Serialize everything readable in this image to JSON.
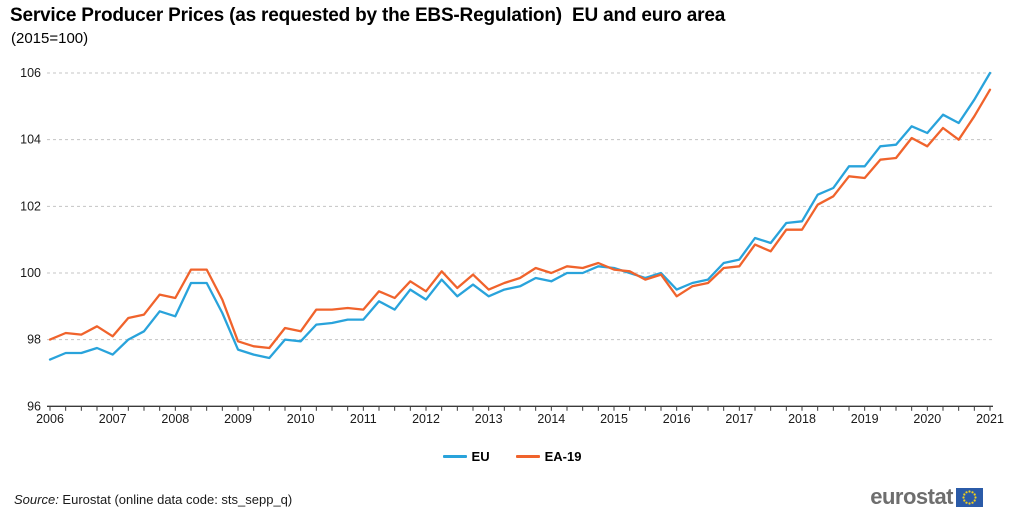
{
  "header": {
    "title": "Service Producer Prices (as requested by the EBS-Regulation)  EU and euro area",
    "subtitle": "(2015=100)"
  },
  "legend": {
    "items": [
      {
        "label": "EU",
        "color": "#29A3DB"
      },
      {
        "label": "EA-19",
        "color": "#F0632C"
      }
    ]
  },
  "footer": {
    "source_label": "Source:",
    "source_rest": " Eurostat (online data code: sts_sepp_q)"
  },
  "logo": {
    "text": "eurostat",
    "flag_blue": "#2B5BA8",
    "star_yellow": "#F7D117"
  },
  "chart_data": {
    "type": "line",
    "title": "Service Producer Prices (as requested by the EBS-Regulation) EU and euro area",
    "subtitle": "(2015=100)",
    "x_frequency": "quarterly",
    "x_start": "2006-Q1",
    "x_end": "2021-Q1",
    "xlabel": "",
    "ylabel": "",
    "ylim": [
      96,
      106
    ],
    "yticks": [
      96,
      98,
      100,
      102,
      104,
      106
    ],
    "xticklabels": [
      "2006",
      "2007",
      "2008",
      "2009",
      "2010",
      "2011",
      "2012",
      "2013",
      "2014",
      "2015",
      "2016",
      "2017",
      "2018",
      "2019",
      "2020",
      "2021"
    ],
    "grid": "horizontal-dashed",
    "legend_position": "bottom-center",
    "colors": {
      "grid": "#C4C4C4",
      "axis": "#3a3a3a",
      "tick_text": "#1a1a1a"
    },
    "series": [
      {
        "name": "EU",
        "color": "#29A3DB",
        "values": [
          97.4,
          97.6,
          97.6,
          97.75,
          97.55,
          98.0,
          98.25,
          98.85,
          98.7,
          99.7,
          99.7,
          98.8,
          97.7,
          97.55,
          97.45,
          98.0,
          97.95,
          98.45,
          98.5,
          98.6,
          98.6,
          99.15,
          98.9,
          99.5,
          99.2,
          99.8,
          99.3,
          99.65,
          99.3,
          99.5,
          99.6,
          99.85,
          99.75,
          100.0,
          100.0,
          100.2,
          100.15,
          100.0,
          99.85,
          100.0,
          99.5,
          99.7,
          99.8,
          100.3,
          100.4,
          101.05,
          100.9,
          101.5,
          101.55,
          102.35,
          102.55,
          103.2,
          103.2,
          103.8,
          103.85,
          104.4,
          104.2,
          104.75,
          104.5,
          105.2,
          106.0
        ]
      },
      {
        "name": "EA-19",
        "color": "#F0632C",
        "values": [
          98.0,
          98.2,
          98.15,
          98.4,
          98.1,
          98.65,
          98.75,
          99.35,
          99.25,
          100.1,
          100.1,
          99.2,
          97.95,
          97.8,
          97.75,
          98.35,
          98.25,
          98.9,
          98.9,
          98.95,
          98.9,
          99.45,
          99.25,
          99.75,
          99.45,
          100.05,
          99.55,
          99.95,
          99.5,
          99.7,
          99.85,
          100.15,
          100.0,
          100.2,
          100.15,
          100.3,
          100.1,
          100.05,
          99.8,
          99.95,
          99.3,
          99.6,
          99.7,
          100.15,
          100.2,
          100.85,
          100.65,
          101.3,
          101.3,
          102.05,
          102.3,
          102.9,
          102.85,
          103.4,
          103.45,
          104.05,
          103.8,
          104.35,
          104.0,
          104.7,
          105.5
        ]
      }
    ]
  }
}
